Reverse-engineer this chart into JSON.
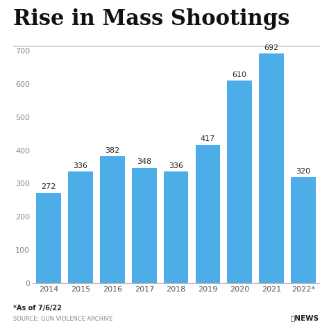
{
  "title": "Rise in Mass Shootings",
  "categories": [
    "2014",
    "2015",
    "2016",
    "2017",
    "2018",
    "2019",
    "2020",
    "2021",
    "2022*"
  ],
  "values": [
    272,
    336,
    382,
    348,
    336,
    417,
    610,
    692,
    320
  ],
  "bar_color": "#4DADE8",
  "background_color": "#ffffff",
  "ylim": [
    0,
    700
  ],
  "yticks": [
    0,
    100,
    200,
    300,
    400,
    500,
    600,
    700
  ],
  "footnote": "*As of 7/6/22",
  "source": "SOURCE: GUN VIOLENCE ARCHIVE",
  "title_fontsize": 22,
  "label_fontsize": 8,
  "tick_fontsize": 8,
  "footnote_fontsize": 7,
  "source_fontsize": 6
}
